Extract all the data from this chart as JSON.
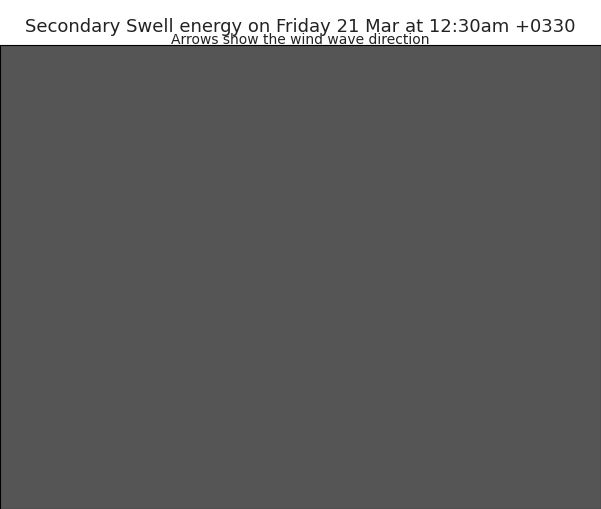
{
  "title": "Secondary Swell energy on Friday 21 Mar at 12:30am +0330",
  "subtitle": "Arrows show the wind wave direction",
  "title_fontsize": 13,
  "subtitle_fontsize": 10,
  "title_color": "#222222",
  "bg_color": "#ffffff",
  "map_bg": "#888888",
  "extent": [
    25,
    75,
    10,
    48
  ],
  "fig_width": 6.01,
  "fig_height": 5.1,
  "dpi": 100
}
